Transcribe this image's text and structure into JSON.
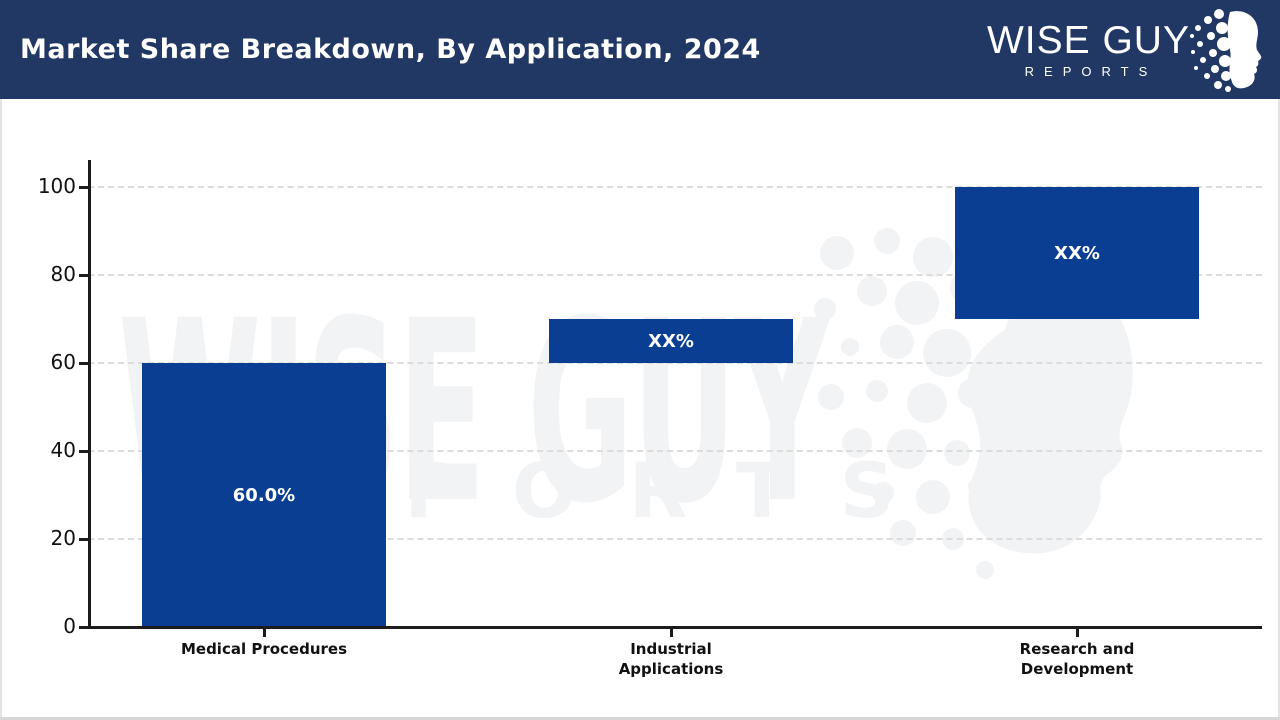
{
  "header": {
    "title": "Market Share Breakdown, By Application, 2024",
    "brand_name": "WISE GUY",
    "brand_sub": "REPORTS"
  },
  "watermark": {
    "wordmark": "WISE GUY",
    "letters": "REPORTS"
  },
  "colors": {
    "header_bg": "#213864",
    "bar": "#0a3e92",
    "bar_label": "#ffffff",
    "grid": "#dcdcdc",
    "axis": "#1c1c1c",
    "tick_text": "#111111",
    "watermark": "#f2f3f5"
  },
  "chart_data": {
    "type": "bar",
    "variant": "stacked-breakdown-waterfall",
    "title": "Market Share Breakdown, By Application, 2024",
    "xlabel": "",
    "ylabel": "",
    "ylim": [
      0,
      100
    ],
    "yticks": [
      0,
      20,
      40,
      60,
      80,
      100
    ],
    "grid": "horizontal dashed",
    "legend": "none",
    "categories": [
      "Medical Procedures",
      "Industrial Applications",
      "Research and Development"
    ],
    "category_lines": [
      [
        "Medical Procedures"
      ],
      [
        "Industrial",
        "Applications"
      ],
      [
        "Research and",
        "Development"
      ]
    ],
    "segments": [
      {
        "category": "Medical Procedures",
        "start": 0,
        "end": 60,
        "label": "60.0%"
      },
      {
        "category": "Industrial Applications",
        "start": 60,
        "end": 70,
        "label": "XX%"
      },
      {
        "category": "Research and Development",
        "start": 70,
        "end": 100,
        "label": "XX%"
      }
    ]
  }
}
